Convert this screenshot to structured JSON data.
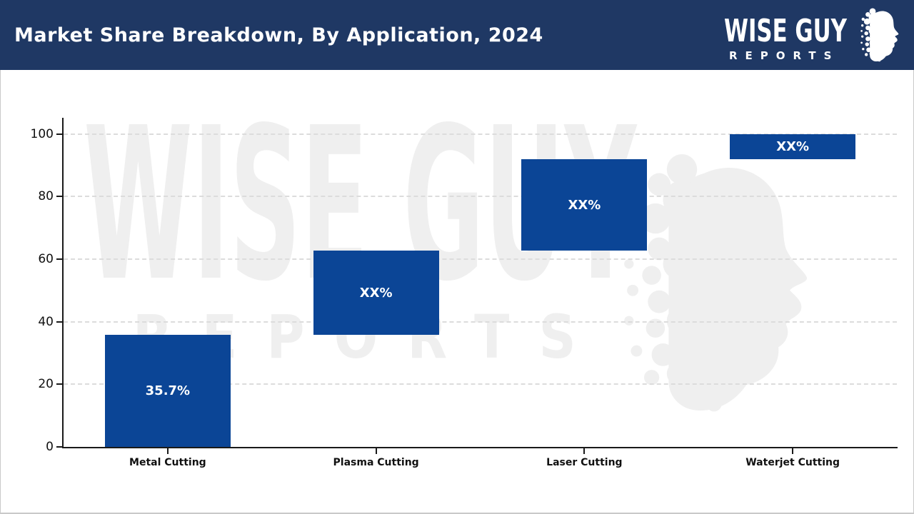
{
  "header": {
    "title": "Market Share Breakdown, By Application, 2024",
    "brand": {
      "line1": "WISE GUY",
      "line2": "REPORTS"
    }
  },
  "watermark": {
    "line1": "WISE GUY",
    "line2": "REPORTS"
  },
  "chart_data": {
    "type": "bar",
    "subtype": "waterfall",
    "title": "Market Share Breakdown, By Application, 2024",
    "categories": [
      "Metal Cutting",
      "Plasma Cutting",
      "Laser Cutting",
      "Waterjet Cutting"
    ],
    "segments": [
      {
        "category": "Metal Cutting",
        "start": 0,
        "end": 35.7,
        "label": "35.7%"
      },
      {
        "category": "Plasma Cutting",
        "start": 35.7,
        "end": 62.6,
        "label": "XX%"
      },
      {
        "category": "Laser Cutting",
        "start": 62.6,
        "end": 91.9,
        "label": "XX%"
      },
      {
        "category": "Waterjet Cutting",
        "start": 91.9,
        "end": 100,
        "label": "XX%"
      }
    ],
    "yticks": [
      0,
      20,
      40,
      60,
      80,
      100
    ],
    "ylim": [
      0,
      100
    ],
    "grid": "dashed-horizontal",
    "legend": "none",
    "bar_color": "#0B4596",
    "bar_label_color": "#FFFFFF",
    "axis_color": "#1A1A1A",
    "grid_color": "#DCDCDC"
  },
  "colors": {
    "header_bg": "#1F3864",
    "header_text": "#FFFFFF",
    "watermark": "#EFEFEF",
    "page_border": "#C9C9C9"
  }
}
